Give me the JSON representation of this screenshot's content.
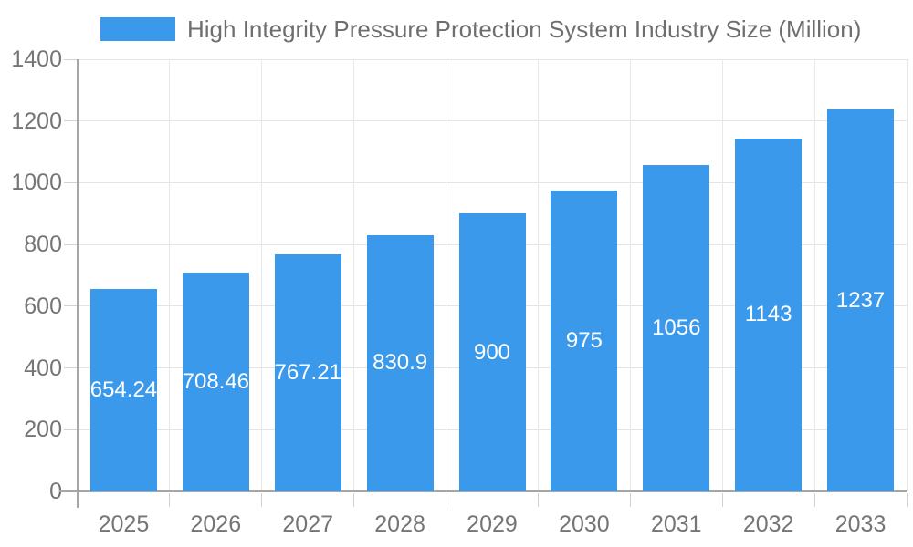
{
  "chart_data": {
    "type": "bar",
    "title": "High Integrity Pressure Protection System Industry Size (Million)",
    "legend": {
      "position": "top",
      "label": "High Integrity Pressure Protection System Industry Size (Million)"
    },
    "categories": [
      "2025",
      "2026",
      "2027",
      "2028",
      "2029",
      "2030",
      "2031",
      "2032",
      "2033"
    ],
    "values": [
      654.24,
      708.46,
      767.21,
      830.9,
      900,
      975,
      1056,
      1143,
      1237
    ],
    "value_labels": [
      "654.24",
      "708.46",
      "767.21",
      "830.9",
      "900",
      "975",
      "1056",
      "1143",
      "1237"
    ],
    "xlabel": "",
    "ylabel": "",
    "ylim": [
      0,
      1400
    ],
    "ytick_step": 200,
    "ytick_labels": [
      "0",
      "200",
      "400",
      "600",
      "800",
      "1000",
      "1200",
      "1400"
    ],
    "grid": true,
    "colors": {
      "bar": "#3B99EC",
      "value_label": "#ffffff",
      "axis_text": "#757575",
      "title_text": "#6e6e6e",
      "grid_line": "#e4e4e4",
      "vgrid_line": "#e8e8e8",
      "axis_line": "#a6a6a6",
      "tick": "#d2d2d2",
      "background": "#ffffff"
    }
  }
}
